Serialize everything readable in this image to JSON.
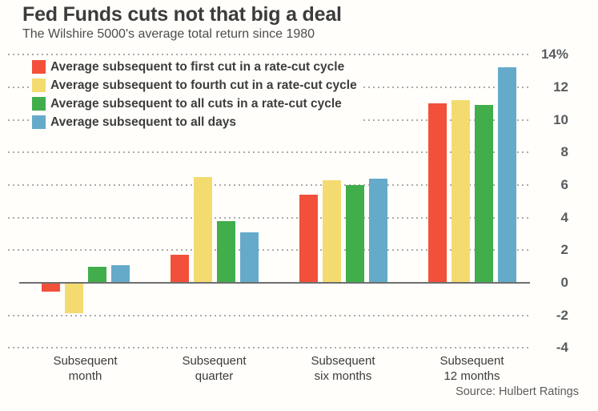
{
  "header": {
    "title": "Fed Funds cuts not that big a deal",
    "subtitle": "The Wilshire 5000's average total return since 1980"
  },
  "footer": {
    "source": "Source: Hulbert Ratings"
  },
  "colors": {
    "first_cut": "#f2503a",
    "fourth_cut": "#f4db70",
    "all_cuts": "#41ae4b",
    "all_days": "#65aac9",
    "zero_axis": "#6e6e6e",
    "gridline": "#ababab",
    "background": "#fffefb"
  },
  "chart_data": {
    "type": "bar",
    "title": "Fed Funds cuts not that big a deal",
    "subtitle": "The Wilshire 5000's average total return since 1980",
    "source": "Source: Hulbert Ratings",
    "ylabel": "",
    "xlabel": "",
    "ylim": [
      -4.5,
      14.5
    ],
    "grid": "horizontal-dashed",
    "legend_position": "top-left",
    "categories": [
      "Subsequent month",
      "Subsequent quarter",
      "Subsequent six months",
      "Subsequent 12 months"
    ],
    "category_lines": [
      [
        "Subsequent",
        "month"
      ],
      [
        "Subsequent",
        "quarter"
      ],
      [
        "Subsequent",
        "six months"
      ],
      [
        "Subsequent",
        "12 months"
      ]
    ],
    "series": [
      {
        "name": "Average subsequent to first cut in a rate-cut cycle",
        "color": "#f2503a",
        "values": [
          -0.5,
          1.7,
          5.4,
          11.0
        ]
      },
      {
        "name": "Average subsequent to fourth cut in a rate-cut cycle",
        "color": "#f4db70",
        "values": [
          -1.8,
          6.5,
          6.3,
          11.2
        ]
      },
      {
        "name": "Average subsequent to all cuts in a rate-cut cycle",
        "color": "#41ae4b",
        "values": [
          1.0,
          3.8,
          6.0,
          10.9
        ]
      },
      {
        "name": "Average subsequent to all days",
        "color": "#65aac9",
        "values": [
          1.1,
          3.1,
          6.4,
          13.2
        ]
      }
    ],
    "yticks": [
      14,
      12,
      10,
      8,
      6,
      4,
      2,
      0,
      -2,
      -4
    ],
    "ytick_labels": [
      "14%",
      "12",
      "10",
      "8",
      "6",
      "4",
      "2",
      "0",
      "-2",
      "-4"
    ]
  }
}
